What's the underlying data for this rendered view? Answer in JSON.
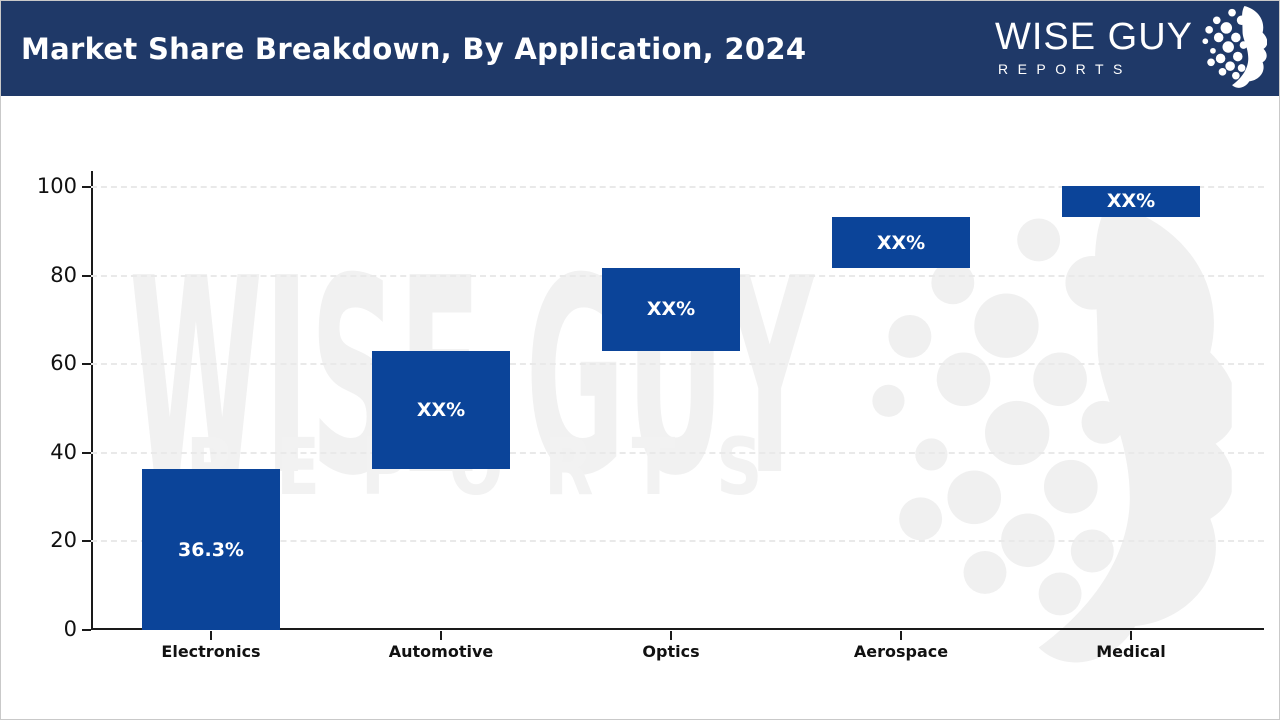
{
  "header": {
    "title": "Market Share Breakdown, By Application, 2024",
    "background_color": "#1f3968",
    "logo": {
      "line1": "WISE GUY",
      "line2": "REPORTS"
    }
  },
  "watermark": {
    "line1": "WISE GUY",
    "line2": "REPORTS"
  },
  "chart_data": {
    "type": "bar",
    "subtype": "waterfall-floating-bars",
    "title": "Market Share Breakdown, By Application, 2024",
    "categories": [
      "Electronics",
      "Automotive",
      "Optics",
      "Aerospace",
      "Medical"
    ],
    "segments": [
      {
        "category": "Electronics",
        "start": 0,
        "end": 36.3,
        "label": "36.3%"
      },
      {
        "category": "Automotive",
        "start": 36.3,
        "end": 63.0,
        "label": "XX%"
      },
      {
        "category": "Optics",
        "start": 63.0,
        "end": 81.7,
        "label": "XX%"
      },
      {
        "category": "Aerospace",
        "start": 81.7,
        "end": 93.2,
        "label": "XX%"
      },
      {
        "category": "Medical",
        "start": 93.2,
        "end": 100.3,
        "label": "XX%"
      }
    ],
    "xlabel": "",
    "ylabel": "",
    "ylim": [
      0,
      103.5
    ],
    "yticks": [
      0,
      20,
      40,
      60,
      80,
      100
    ],
    "grid": "horizontal dashed",
    "legend": "none",
    "bar_color": "#0b4499",
    "bar_label_color": "#ffffff",
    "axis_color": "#1a1a1a",
    "grid_color": "#e9e9e9"
  }
}
